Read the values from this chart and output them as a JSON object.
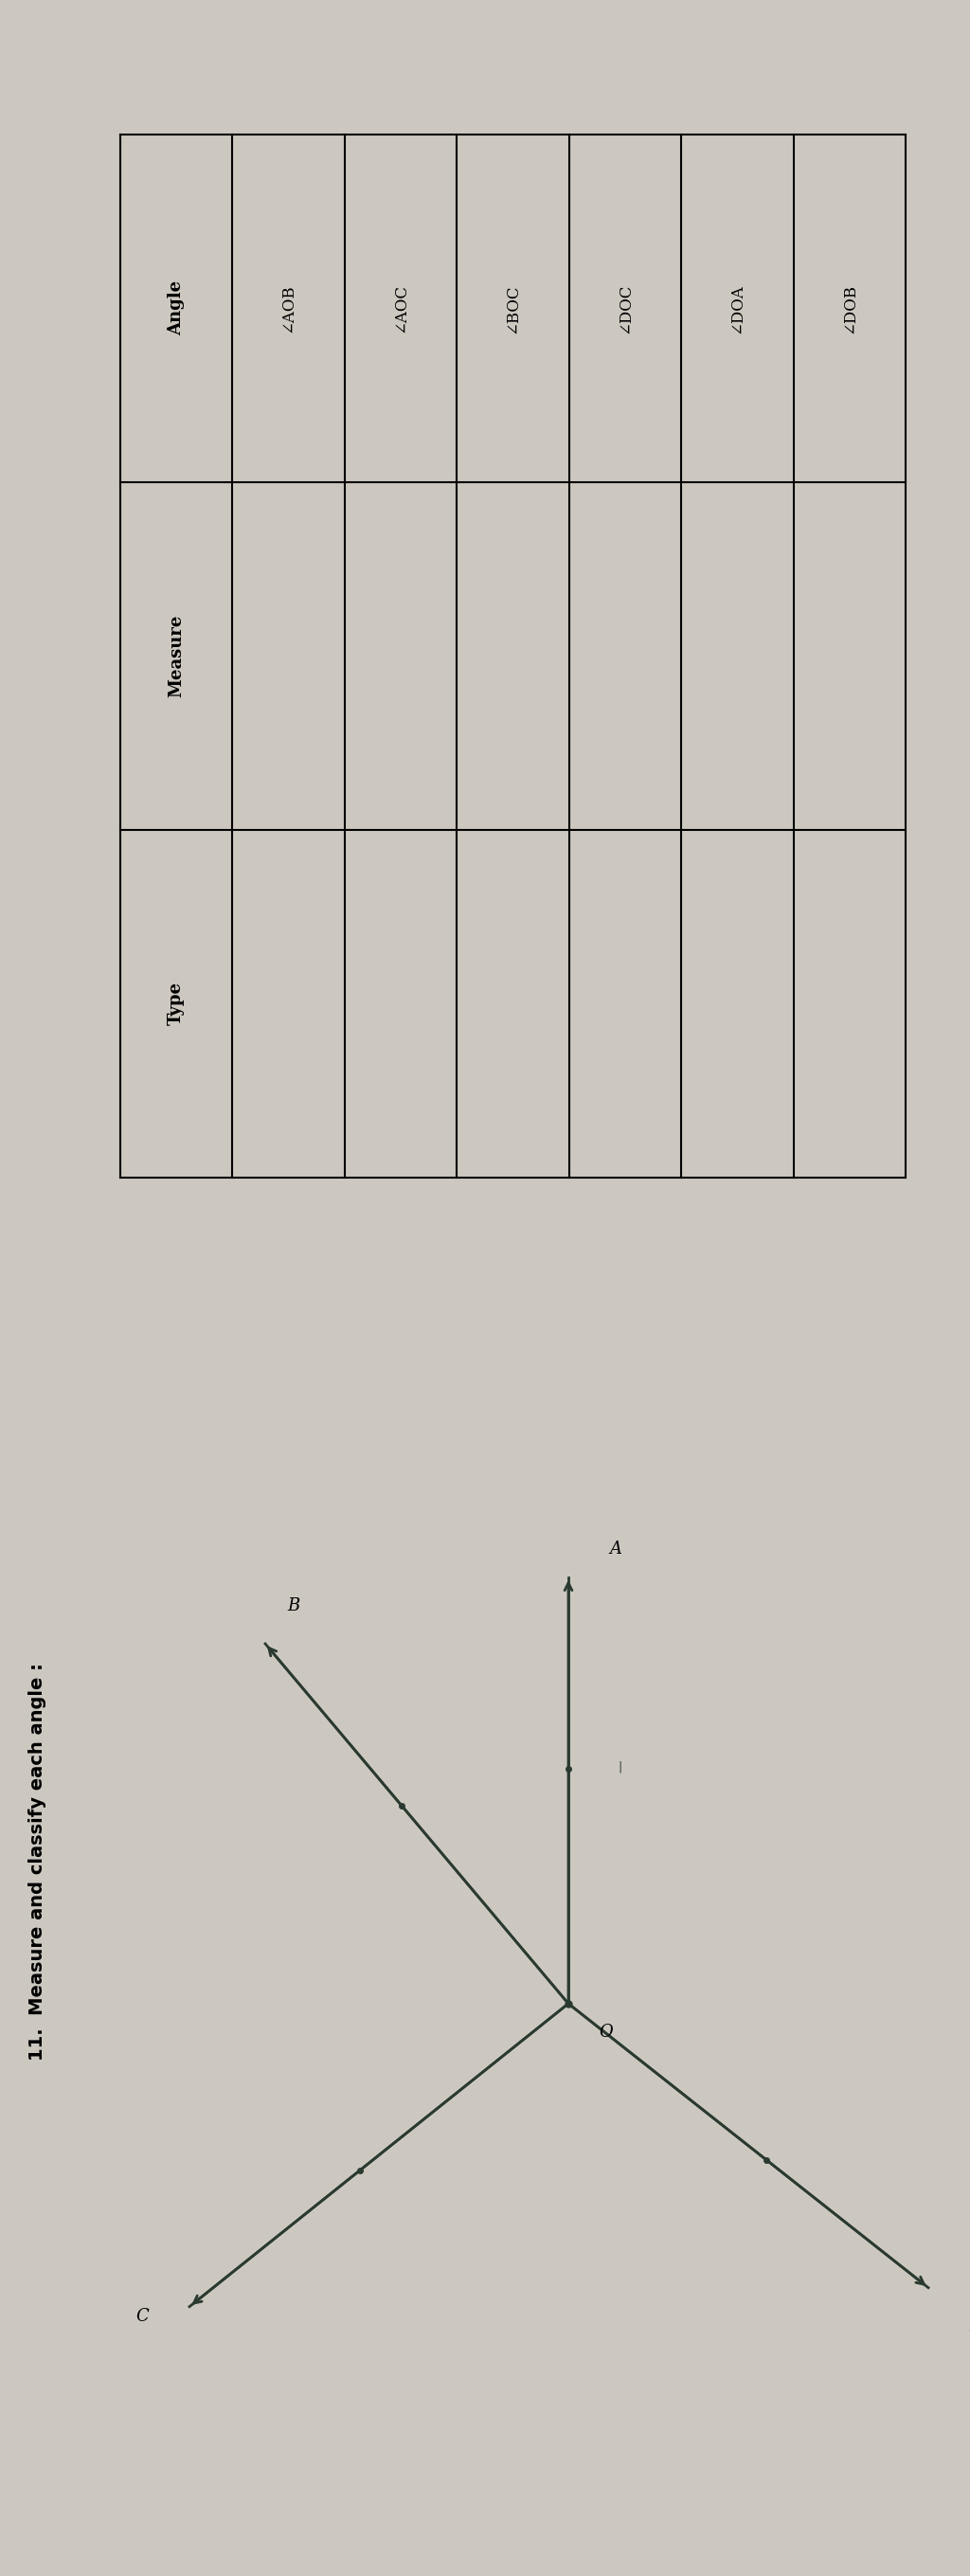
{
  "title": "11.  Measure and classify each angle :",
  "title_fontsize": 14,
  "background_color": "#ccc8c0",
  "table_angles": [
    "∠AOB",
    "∠AOC",
    "∠BOC",
    "∠DOC",
    "∠DOA",
    "∠DOB"
  ],
  "table_headers": [
    "Angle",
    "Measure",
    "Type"
  ],
  "line_color": "#2a3a30",
  "label_fontsize": 13,
  "table_fontsize": 13,
  "page_bg": "#ccc8c0"
}
